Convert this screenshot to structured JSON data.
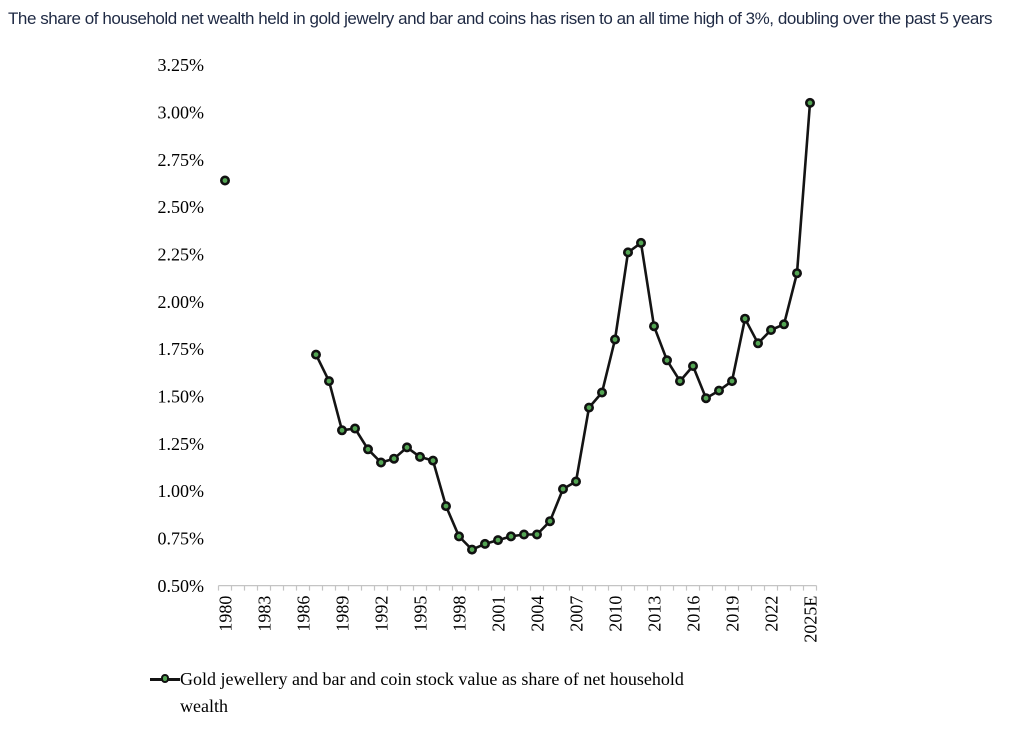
{
  "title": "The share of household net wealth held in gold jewelry and bar and coins has risen to an all time high of 3%, doubling over the past 5 years",
  "legend": {
    "lines": [
      "Gold jewellery and bar and coin stock value as share of net household",
      "wealth"
    ]
  },
  "chart_data": {
    "type": "line",
    "title": "The share of household net wealth held in gold jewelry and bar and coins has risen to an all time high of 3%, doubling over the past 5 years",
    "xlabel": "",
    "ylabel": "",
    "grid": false,
    "legend_position": "bottom",
    "marker": "circle",
    "ylim": [
      0.5,
      3.25
    ],
    "y_tick_step": 0.25,
    "x": [
      1980,
      1981,
      1982,
      1983,
      1984,
      1985,
      1986,
      1987,
      1988,
      1989,
      1990,
      1991,
      1992,
      1993,
      1994,
      1995,
      1996,
      1997,
      1998,
      1999,
      2000,
      2001,
      2002,
      2003,
      2004,
      2005,
      2006,
      2007,
      2008,
      2009,
      2010,
      2011,
      2012,
      2013,
      2014,
      2015,
      2016,
      2017,
      2018,
      2019,
      2020,
      2021,
      2022,
      2023,
      2024,
      2025
    ],
    "series": [
      {
        "name": "Gold jewellery and bar and coin stock value as share of net household wealth",
        "values": [
          2.64,
          null,
          null,
          null,
          null,
          null,
          null,
          1.72,
          1.58,
          1.32,
          1.33,
          1.22,
          1.15,
          1.17,
          1.23,
          1.18,
          1.16,
          0.92,
          0.76,
          0.69,
          0.72,
          0.74,
          0.76,
          0.77,
          0.77,
          0.84,
          1.01,
          1.05,
          1.44,
          1.52,
          1.8,
          2.26,
          2.31,
          1.87,
          1.69,
          1.58,
          1.66,
          1.49,
          1.53,
          1.58,
          1.91,
          1.78,
          1.85,
          1.88,
          2.15,
          3.05
        ]
      }
    ],
    "x_ticks": [
      {
        "year": 1980,
        "label": "1980"
      },
      {
        "year": 1983,
        "label": "1983"
      },
      {
        "year": 1986,
        "label": "1986"
      },
      {
        "year": 1989,
        "label": "1989"
      },
      {
        "year": 1992,
        "label": "1992"
      },
      {
        "year": 1995,
        "label": "1995"
      },
      {
        "year": 1998,
        "label": "1998"
      },
      {
        "year": 2001,
        "label": "2001"
      },
      {
        "year": 2004,
        "label": "2004"
      },
      {
        "year": 2007,
        "label": "2007"
      },
      {
        "year": 2010,
        "label": "2010"
      },
      {
        "year": 2013,
        "label": "2013"
      },
      {
        "year": 2016,
        "label": "2016"
      },
      {
        "year": 2019,
        "label": "2019"
      },
      {
        "year": 2022,
        "label": "2022"
      },
      {
        "year": 2025,
        "label": "2025E"
      }
    ],
    "y_ticks": [
      {
        "value": 3.25,
        "label": "3.25%"
      },
      {
        "value": 3.0,
        "label": "3.00%"
      },
      {
        "value": 2.75,
        "label": "2.75%"
      },
      {
        "value": 2.5,
        "label": "2.50%"
      },
      {
        "value": 2.25,
        "label": "2.25%"
      },
      {
        "value": 2.0,
        "label": "2.00%"
      },
      {
        "value": 1.75,
        "label": "1.75%"
      },
      {
        "value": 1.5,
        "label": "1.50%"
      },
      {
        "value": 1.25,
        "label": "1.25%"
      },
      {
        "value": 1.0,
        "label": "1.00%"
      },
      {
        "value": 0.75,
        "label": "0.75%"
      },
      {
        "value": 0.5,
        "label": "0.50%"
      }
    ],
    "colors": {
      "line": "#141414",
      "marker_fill": "#53a553",
      "marker_stroke": "#111111",
      "axis": "#c4c4c4",
      "tick_label": "#000000",
      "title": "#1f2a44"
    }
  }
}
